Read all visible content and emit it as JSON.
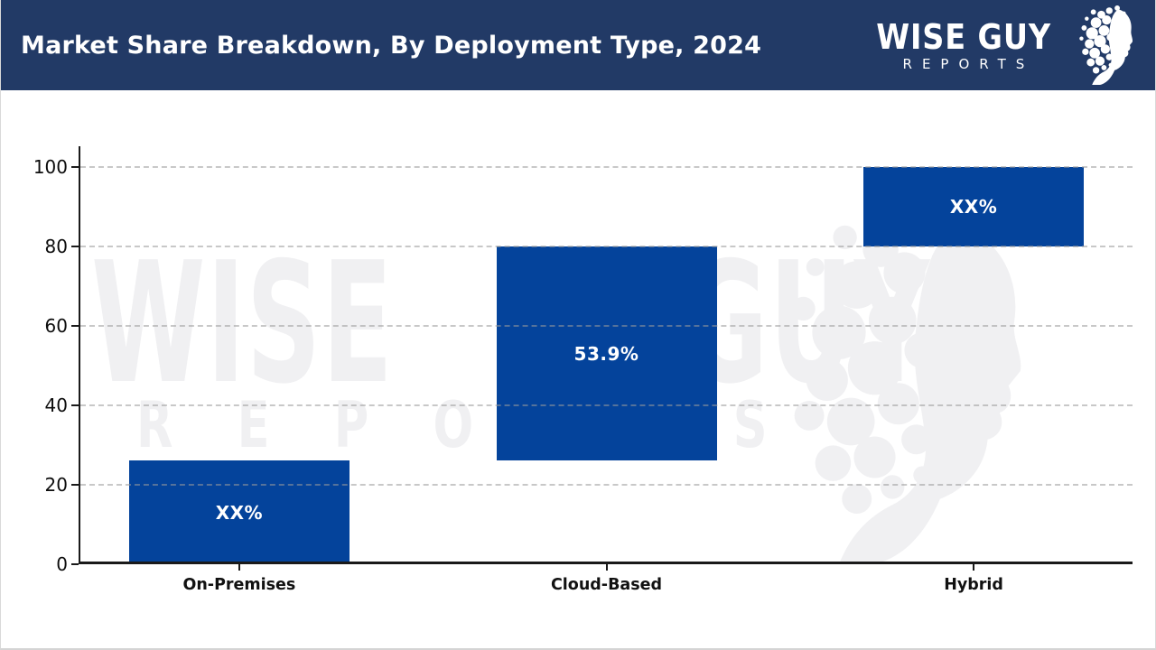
{
  "header": {
    "title": "Market Share Breakdown, By Deployment Type, 2024",
    "background_color": "#223a66",
    "logo": {
      "line1": "WISE GUY",
      "line2": "REPORTS"
    }
  },
  "watermark": {
    "line1": "WISE GUY",
    "line2": "REPORTS",
    "color": "#f0f0f2"
  },
  "chart_data": {
    "type": "bar",
    "subtype": "waterfall",
    "title": "Market Share Breakdown, By Deployment Type, 2024",
    "categories": [
      "On-Premises",
      "Cloud-Based",
      "Hybrid"
    ],
    "values": [
      26.1,
      53.9,
      20.0
    ],
    "cumulative_start": [
      0,
      26.1,
      80
    ],
    "cumulative_end": [
      26.1,
      80,
      100
    ],
    "bar_labels": [
      "XX%",
      "53.9%",
      "XX%"
    ],
    "xlabel": "",
    "ylabel": "",
    "ylim": [
      0,
      100
    ],
    "yticks": [
      0,
      20,
      40,
      60,
      80,
      100
    ],
    "grid": "horizontal-dashed",
    "legend": "none",
    "bar_color": "#04439b",
    "value_label_color": "#ffffff",
    "grid_color": "#c8c8c8",
    "axis_color": "#1a1a1a"
  }
}
